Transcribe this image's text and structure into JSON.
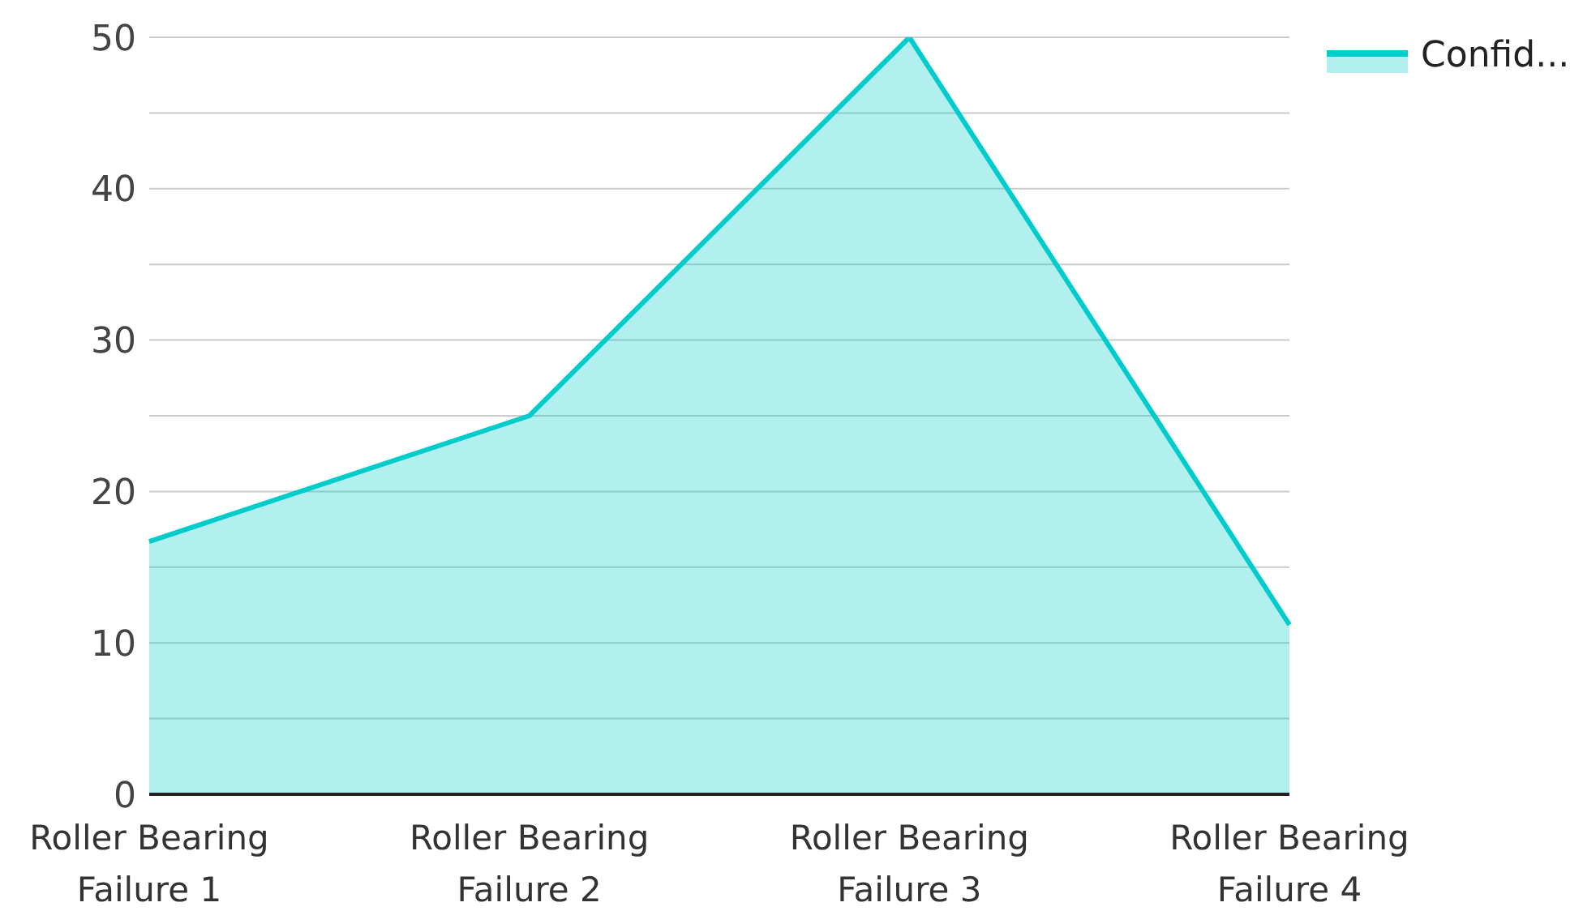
{
  "chart_data": {
    "type": "area",
    "categories": [
      "Roller Bearing Failure 1",
      "Roller Bearing Failure 2",
      "Roller Bearing Failure 3",
      "Roller Bearing Failure 4"
    ],
    "series": [
      {
        "name": "Confid...",
        "color": "#00cccc",
        "values": [
          16.7,
          25,
          50,
          11.2
        ]
      }
    ],
    "ylim": [
      0,
      50
    ],
    "yticks": [
      0,
      {
        "value": 5,
        "label": null
      },
      10,
      {
        "value": 15,
        "label": null
      },
      20,
      {
        "value": 25,
        "label": null
      },
      30,
      {
        "value": 35,
        "label": null
      },
      40,
      {
        "value": 45,
        "label": null
      },
      50
    ],
    "grid": "y",
    "legend": "top right",
    "marker": "none"
  }
}
